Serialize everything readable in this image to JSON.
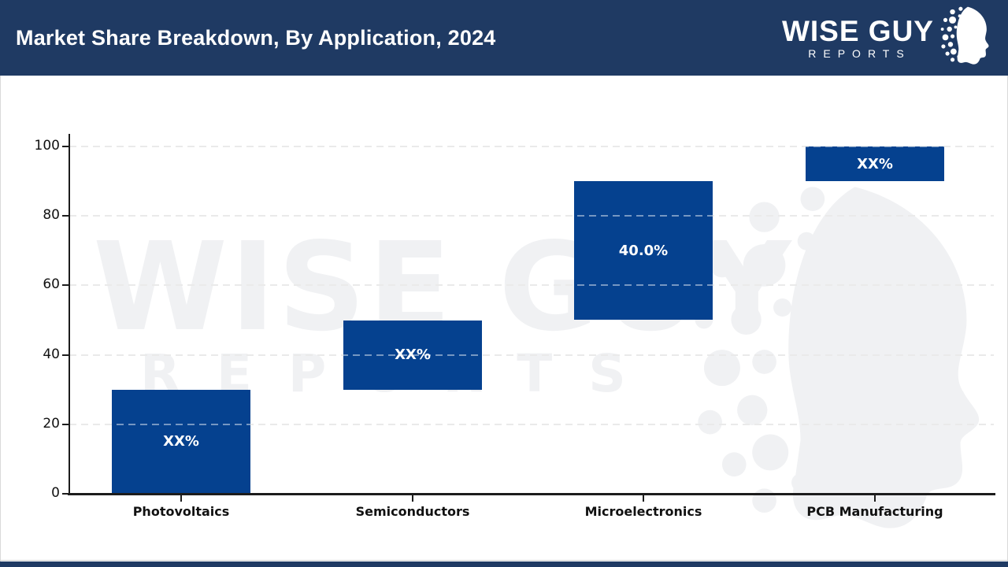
{
  "header": {
    "title": "Market Share Breakdown, By Application, 2024",
    "logo": {
      "line1": "WISE GUY",
      "line2": "REPORTS"
    }
  },
  "watermark": {
    "line1": "WISE GUY",
    "line2": "REPORTS"
  },
  "colors": {
    "header_bg": "#1f3a63",
    "footer_bg": "#1f3a63",
    "bar": "#05418f",
    "bar_label": "#ffffff",
    "gridline": "#d9d9d9",
    "axis": "#1c1c1c",
    "watermark": "#f0f1f3"
  },
  "chart_data": {
    "type": "bar",
    "subtype": "floating-waterfall",
    "title": "Market Share Breakdown, By Application, 2024",
    "categories": [
      "Photovoltaics",
      "Semiconductors",
      "Microelectronics",
      "PCB Manufacturing"
    ],
    "segments": [
      {
        "category": "Photovoltaics",
        "start": 0,
        "end": 30,
        "label": "XX%"
      },
      {
        "category": "Semiconductors",
        "start": 30,
        "end": 50,
        "label": "XX%"
      },
      {
        "category": "Microelectronics",
        "start": 50,
        "end": 90,
        "label": "40.0%"
      },
      {
        "category": "PCB Manufacturing",
        "start": 90,
        "end": 100,
        "label": "XX%"
      }
    ],
    "values": [
      30,
      20,
      40,
      10
    ],
    "xlabel": "",
    "ylabel": "",
    "ylim": [
      0,
      100
    ],
    "yticks": [
      0,
      20,
      40,
      60,
      80,
      100
    ],
    "grid": "horizontal-dashed",
    "legend": "none"
  }
}
